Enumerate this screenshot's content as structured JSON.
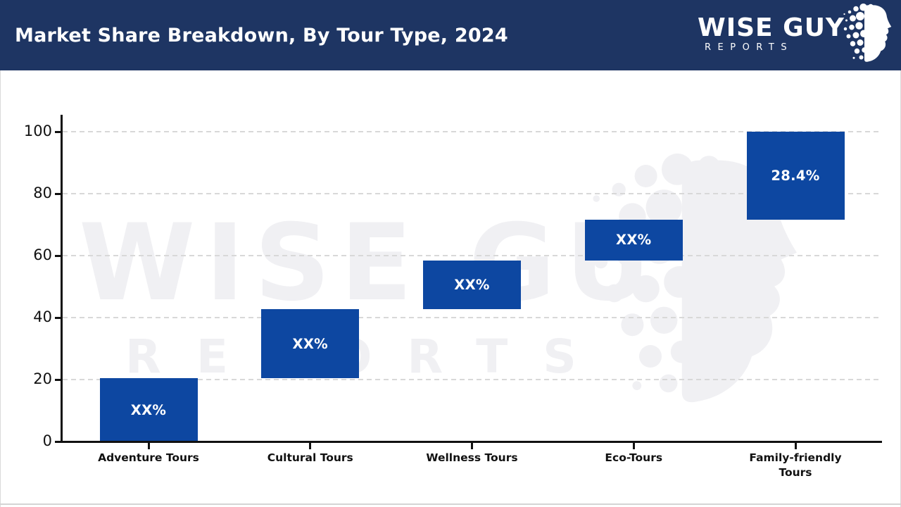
{
  "header": {
    "title": "Market Share Breakdown, By Tour Type, 2024",
    "logo": {
      "primary": "WISE GUY",
      "secondary": "REPORTS"
    }
  },
  "watermark": {
    "primary": "WISE GUY",
    "secondary": "REPORTS"
  },
  "colors": {
    "header_bg": "#1e3563",
    "bar": "#0d47a1",
    "bar_label": "#ffffff",
    "grid": "#d8d8d8",
    "axis": "#111111",
    "watermark": "#f0f0f3"
  },
  "chart_data": {
    "type": "bar",
    "variant": "waterfall",
    "title": "Market Share Breakdown, By Tour Type, 2024",
    "xlabel": "",
    "ylabel": "",
    "ylim": [
      0,
      106
    ],
    "yticks": [
      0,
      20,
      40,
      60,
      80,
      100
    ],
    "grid": "horizontal-dashed",
    "legend_position": "none",
    "categories": [
      "Adventure Tours",
      "Cultural Tours",
      "Wellness Tours",
      "Eco-Tours",
      "Family-friendly Tours"
    ],
    "bars": [
      {
        "category": "Adventure Tours",
        "start": 0,
        "end": 20.4,
        "label": "XX%"
      },
      {
        "category": "Cultural Tours",
        "start": 20.4,
        "end": 42.7,
        "label": "XX%"
      },
      {
        "category": "Wellness Tours",
        "start": 42.7,
        "end": 58.4,
        "label": "XX%"
      },
      {
        "category": "Eco-Tours",
        "start": 58.4,
        "end": 71.6,
        "label": "XX%"
      },
      {
        "category": "Family-friendly Tours",
        "start": 71.6,
        "end": 100,
        "label": "28.4%"
      }
    ]
  }
}
